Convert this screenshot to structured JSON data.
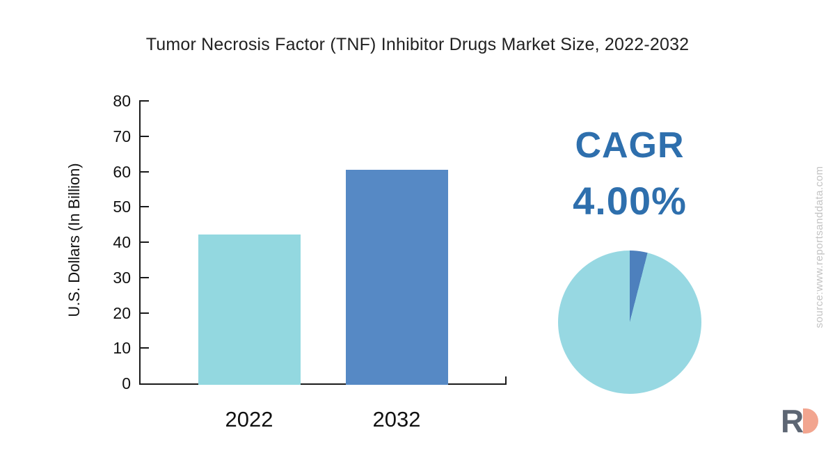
{
  "title": "Tumor Necrosis Factor (TNF) Inhibitor Drugs Market Size, 2022-2032",
  "cagr": {
    "label": "CAGR",
    "value": "4.00%"
  },
  "source_note": "source:www.reportsanddata.com",
  "logo": {
    "letter": "R",
    "d_shape": "rounded-d"
  },
  "colors": {
    "bar_2022": "#93d8e0",
    "bar_2032": "#5689c5",
    "pie_main": "#97d8e2",
    "pie_slice": "#4d80bd",
    "cagr_text": "#2e6fad",
    "axis": "#1a1a1a",
    "source_text": "#c3c3c3",
    "logo_r": "#5d6673",
    "logo_d": "#f2a58f"
  },
  "chart_data": [
    {
      "type": "bar",
      "title": "Tumor Necrosis Factor (TNF) Inhibitor Drugs Market Size, 2022-2032",
      "categories": [
        "2022",
        "2032"
      ],
      "values": [
        42.2,
        60.5
      ],
      "xlabel": "",
      "ylabel": "U.S. Dollars (In Billion)",
      "ylim": [
        0,
        80
      ],
      "yticks": [
        0,
        10,
        20,
        30,
        40,
        50,
        60,
        70,
        80
      ],
      "grid": false,
      "legend": "none",
      "bar_colors": [
        "#93d8e0",
        "#5689c5"
      ]
    },
    {
      "type": "pie",
      "title": "CAGR 4.00%",
      "slices": [
        {
          "label": "CAGR",
          "value": 4,
          "color": "#4d80bd"
        },
        {
          "label": "remainder",
          "value": 96,
          "color": "#97d8e2"
        }
      ],
      "start_angle_deg": 0,
      "direction": "clockwise"
    }
  ]
}
